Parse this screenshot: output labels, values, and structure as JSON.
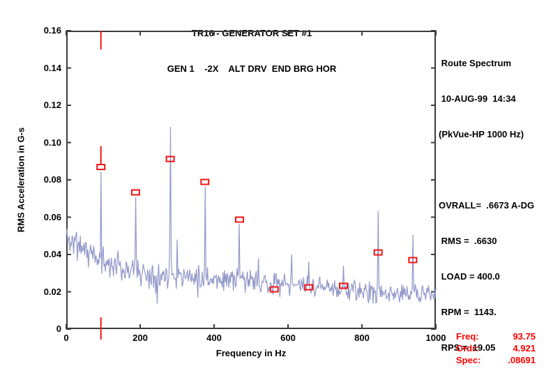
{
  "header": {
    "title": "TR16 - GENERATOR SET #1",
    "subtitle": "GEN 1    -2X    ALT DRV  END BRG HOR"
  },
  "info_panel": {
    "lines": [
      " Route Spectrum",
      " 10-AUG-99  14:34",
      "(PkVue-HP 1000 Hz)",
      "",
      "OVRALL=  .6673 A-DG",
      " RMS =  .6630",
      " LOAD = 400.0",
      " RPM =  1143.",
      " RPS =  19.05"
    ]
  },
  "cursor_readout": {
    "color": "#ff0000",
    "rows": [
      {
        "label": "Freq:",
        "value": "93.75"
      },
      {
        "label": "Ordr:",
        "value": "4.921"
      },
      {
        "label": "Spec:",
        "value": ".08691"
      }
    ]
  },
  "chart_data": {
    "type": "line",
    "title": "TR16 - GENERATOR SET #1",
    "subtitle": "GEN 1    -2X    ALT DRV  END BRG HOR",
    "xlabel": "Frequency in Hz",
    "ylabel": "RMS Acceleration in G-s",
    "xlim": [
      0,
      1000
    ],
    "ylim": [
      0,
      0.16
    ],
    "x_ticks": [
      0,
      200,
      400,
      600,
      800,
      1000
    ],
    "y_ticks": [
      0,
      0.02,
      0.04,
      0.06,
      0.08,
      0.1,
      0.12,
      0.14,
      0.16
    ],
    "y_tick_labels": [
      "0",
      "0.02",
      "0.04",
      "0.06",
      "0.08",
      "0.10",
      "0.12",
      "0.14",
      "0.16"
    ],
    "grid": false,
    "legend": "none",
    "line_color": "#9298c9",
    "marker_color": "#ee1414",
    "axis_color": "#3b3b3b",
    "cursor": {
      "freq": 93.75,
      "order": 4.921,
      "spec": 0.08691
    },
    "harmonic_markers": [
      {
        "freq": 93.75,
        "value": 0.0869
      },
      {
        "freq": 187.5,
        "value": 0.0733
      },
      {
        "freq": 281.25,
        "value": 0.0912
      },
      {
        "freq": 375.0,
        "value": 0.0789
      },
      {
        "freq": 468.75,
        "value": 0.0587
      },
      {
        "freq": 562.5,
        "value": 0.0213
      },
      {
        "freq": 656.25,
        "value": 0.0224
      },
      {
        "freq": 750.0,
        "value": 0.0232
      },
      {
        "freq": 843.75,
        "value": 0.0411
      },
      {
        "freq": 937.5,
        "value": 0.037
      }
    ],
    "spectrum_peaks": [
      [
        47,
        0.046
      ],
      [
        93.75,
        0.0845
      ],
      [
        140,
        0.042
      ],
      [
        187.5,
        0.0707
      ],
      [
        281.25,
        0.1084
      ],
      [
        300,
        0.048
      ],
      [
        375,
        0.0766
      ],
      [
        468.75,
        0.0565
      ],
      [
        520,
        0.038
      ],
      [
        562.5,
        0.03
      ],
      [
        610,
        0.04
      ],
      [
        656.25,
        0.036
      ],
      [
        750,
        0.034
      ],
      [
        843.75,
        0.0632
      ],
      [
        937.5,
        0.0505
      ]
    ],
    "noise_envelope": [
      [
        0,
        0.05
      ],
      [
        20,
        0.047
      ],
      [
        50,
        0.042
      ],
      [
        80,
        0.038
      ],
      [
        120,
        0.034
      ],
      [
        160,
        0.032
      ],
      [
        200,
        0.03
      ],
      [
        260,
        0.028
      ],
      [
        320,
        0.029
      ],
      [
        400,
        0.027
      ],
      [
        480,
        0.026
      ],
      [
        560,
        0.024
      ],
      [
        640,
        0.023
      ],
      [
        720,
        0.022
      ],
      [
        800,
        0.02
      ],
      [
        880,
        0.019
      ],
      [
        1000,
        0.018
      ]
    ],
    "noise_amp": [
      [
        0,
        0.009
      ],
      [
        400,
        0.007
      ],
      [
        1000,
        0.0055
      ]
    ],
    "seed": 11
  }
}
